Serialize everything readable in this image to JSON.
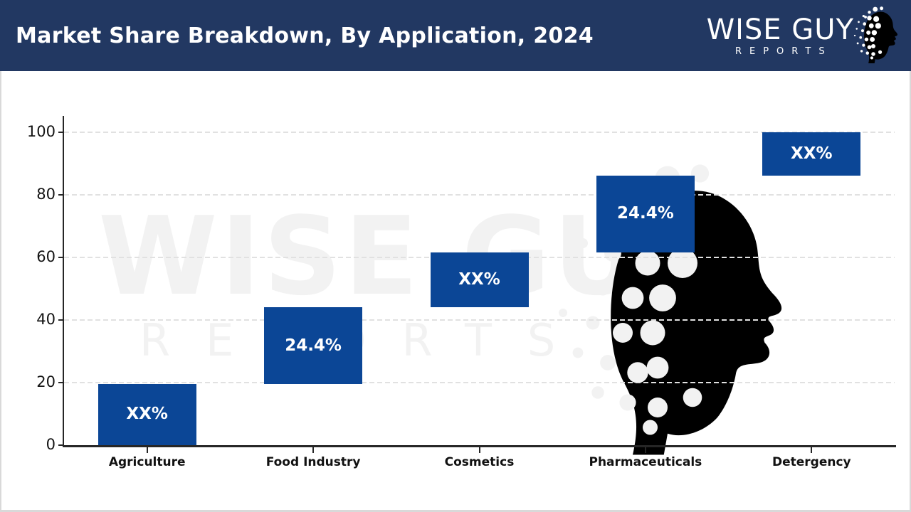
{
  "header": {
    "title": "Market Share Breakdown, By Application, 2024",
    "bg_color": "#223862",
    "text_color": "#ffffff"
  },
  "brand": {
    "name": "WISE GUY",
    "subtitle": "REPORTS",
    "icon": "dotted-head-profile-icon"
  },
  "watermark": {
    "line1": "WISE GUY",
    "line2": "REPORTS",
    "color": "#f2f2f2"
  },
  "chart_data": {
    "type": "waterfall",
    "title": "Market Share Breakdown, By Application, 2024",
    "categories": [
      "Agriculture",
      "Food Industry",
      "Cosmetics",
      "Pharmaceuticals",
      "Detergency"
    ],
    "segments": [
      {
        "category": "Agriculture",
        "start": 0,
        "end": 19.6,
        "label": "XX%"
      },
      {
        "category": "Food Industry",
        "start": 19.6,
        "end": 44.0,
        "label": "24.4%"
      },
      {
        "category": "Cosmetics",
        "start": 44.0,
        "end": 61.7,
        "label": "XX%"
      },
      {
        "category": "Pharmaceuticals",
        "start": 61.7,
        "end": 86.1,
        "label": "24.4%"
      },
      {
        "category": "Detergency",
        "start": 86.1,
        "end": 100,
        "label": "XX%"
      }
    ],
    "yticks": [
      0,
      20,
      40,
      60,
      80,
      100
    ],
    "ylim": [
      0,
      105
    ],
    "xlabel": "",
    "ylabel": "",
    "grid": "horizontal-dashed",
    "legend": "none",
    "bar_color": "#0b4696",
    "bar_label_color": "#ffffff",
    "axis_color": "#262626",
    "grid_color": "#e1e1e1"
  }
}
